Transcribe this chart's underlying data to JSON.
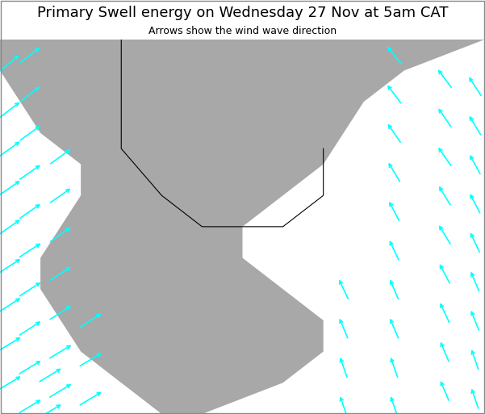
{
  "title": "Primary Swell energy on Wednesday 27 Nov at 5am CAT",
  "subtitle": "Arrows show the wind wave direction",
  "title_fontsize": 13,
  "subtitle_fontsize": 9,
  "fig_width": 6.01,
  "fig_height": 5.13,
  "dpi": 100,
  "extent": [
    18.0,
    42.0,
    -22.0,
    2.0
  ],
  "ocean_color": "#000020",
  "land_color": "#aaaaaa",
  "border_color": "#000000",
  "lake_color": "#000020",
  "header_color": "#ffffff",
  "arrow_color": "#00ffff",
  "arrow_size": 7,
  "west_arrows": [
    [
      19.5,
      1.0,
      45
    ],
    [
      19.5,
      -1.5,
      45
    ],
    [
      19.5,
      -4.0,
      47
    ],
    [
      19.5,
      -6.5,
      48
    ],
    [
      19.5,
      -9.0,
      48
    ],
    [
      19.5,
      -11.5,
      50
    ],
    [
      19.5,
      -14.0,
      50
    ],
    [
      19.5,
      -16.5,
      50
    ],
    [
      19.5,
      -19.0,
      52
    ],
    [
      19.5,
      -21.5,
      52
    ],
    [
      21.0,
      -5.5,
      47
    ],
    [
      21.0,
      -8.0,
      48
    ],
    [
      21.0,
      -10.5,
      48
    ],
    [
      21.0,
      -13.0,
      50
    ],
    [
      21.0,
      -15.5,
      50
    ],
    [
      21.0,
      -18.0,
      52
    ],
    [
      21.0,
      -20.5,
      52
    ],
    [
      22.5,
      -16.0,
      50
    ],
    [
      22.5,
      -18.5,
      52
    ],
    [
      22.5,
      -21.0,
      52
    ],
    [
      18.5,
      0.5,
      43
    ],
    [
      18.5,
      -2.5,
      45
    ],
    [
      18.5,
      -5.0,
      47
    ],
    [
      18.5,
      -7.5,
      48
    ],
    [
      18.5,
      -10.0,
      48
    ],
    [
      18.5,
      -12.5,
      50
    ],
    [
      18.5,
      -15.0,
      50
    ],
    [
      18.5,
      -17.5,
      52
    ],
    [
      18.5,
      -20.0,
      52
    ],
    [
      20.5,
      -19.5,
      52
    ],
    [
      20.5,
      -21.8,
      52
    ]
  ],
  "east_arrows": [
    [
      40.0,
      1.5,
      -30
    ],
    [
      40.0,
      -0.5,
      -30
    ],
    [
      40.0,
      -3.0,
      -28
    ],
    [
      40.0,
      -5.5,
      -28
    ],
    [
      40.0,
      -8.0,
      -25
    ],
    [
      40.0,
      -10.5,
      -25
    ],
    [
      40.0,
      -13.0,
      -22
    ],
    [
      40.0,
      -15.5,
      -20
    ],
    [
      40.0,
      -18.0,
      -18
    ],
    [
      40.0,
      -20.5,
      -18
    ],
    [
      37.5,
      1.0,
      -32
    ],
    [
      37.5,
      -1.5,
      -30
    ],
    [
      37.5,
      -4.0,
      -28
    ],
    [
      37.5,
      -6.5,
      -25
    ],
    [
      37.5,
      -9.0,
      -22
    ],
    [
      37.5,
      -11.5,
      -20
    ],
    [
      37.5,
      -14.0,
      -18
    ],
    [
      37.5,
      -16.5,
      -18
    ],
    [
      37.5,
      -19.0,
      -15
    ],
    [
      37.5,
      -21.5,
      -15
    ],
    [
      35.0,
      -14.0,
      -20
    ],
    [
      35.0,
      -16.5,
      -18
    ],
    [
      35.0,
      -19.0,
      -15
    ],
    [
      35.0,
      -21.5,
      -15
    ],
    [
      41.5,
      1.5,
      -28
    ],
    [
      41.5,
      -1.0,
      -27
    ],
    [
      41.5,
      -3.5,
      -25
    ],
    [
      41.5,
      -6.0,
      -23
    ],
    [
      41.5,
      -8.5,
      -22
    ],
    [
      41.5,
      -11.0,
      -20
    ],
    [
      41.5,
      -13.5,
      -18
    ],
    [
      41.5,
      -16.0,
      -17
    ],
    [
      41.5,
      -18.5,
      -15
    ],
    [
      41.5,
      -21.0,
      -15
    ]
  ],
  "se_arrows": [
    [
      34.0,
      -21.5,
      -38
    ],
    [
      36.0,
      -21.5,
      -35
    ],
    [
      38.0,
      -21.5,
      -32
    ],
    [
      33.0,
      -20.0,
      -40
    ],
    [
      35.0,
      -20.0,
      -38
    ],
    [
      37.0,
      -20.0,
      -35
    ],
    [
      32.0,
      -18.5,
      -42
    ],
    [
      34.0,
      -18.5,
      -40
    ],
    [
      36.0,
      -18.5,
      -38
    ],
    [
      31.5,
      -17.0,
      -42
    ],
    [
      33.5,
      -17.0,
      -40
    ]
  ]
}
